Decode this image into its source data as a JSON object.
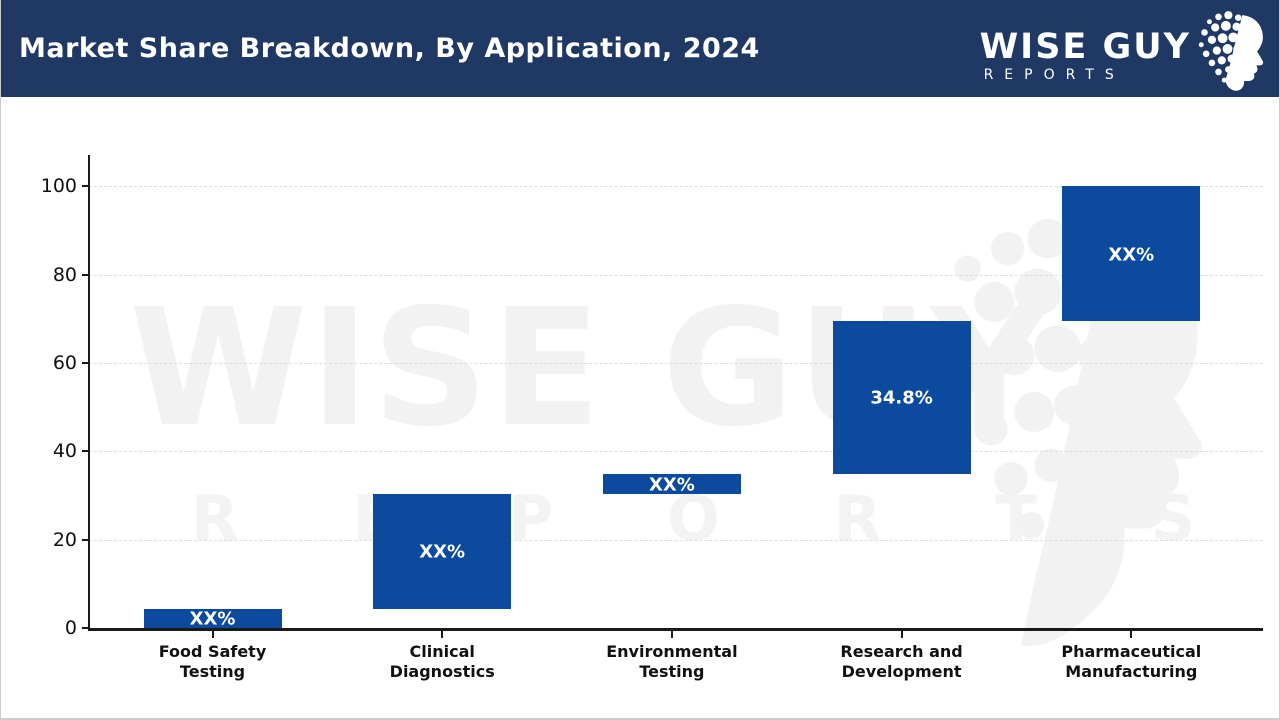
{
  "header": {
    "title": "Market Share Breakdown, By Application, 2024",
    "bg_color": "#1f3864"
  },
  "brand": {
    "name": "WISE GUY",
    "tagline": "REPORTS"
  },
  "watermark": {
    "name": "WISE GUY",
    "tagline": "R E P O R T S"
  },
  "chart_data": {
    "type": "bar",
    "subtype": "waterfall",
    "title": "Market Share Breakdown, By Application, 2024",
    "xlabel": "",
    "ylabel": "",
    "ylim": [
      0,
      105
    ],
    "yticks": [
      0,
      20,
      40,
      60,
      80,
      100
    ],
    "grid": "horizontal-dashed",
    "legend": "none",
    "bar_color": "#0b4a9c",
    "categories": [
      "Food Safety\nTesting",
      "Clinical\nDiagnostics",
      "Environmental\nTesting",
      "Research and\nDevelopment",
      "Pharmaceutical\nManufacturing"
    ],
    "segments": [
      {
        "category": "Food Safety Testing",
        "start": 0,
        "end": 4.4,
        "value": 4.4,
        "label": "XX%"
      },
      {
        "category": "Clinical Diagnostics",
        "start": 4.4,
        "end": 30.4,
        "value": 26.0,
        "label": "XX%"
      },
      {
        "category": "Environmental Testing",
        "start": 30.4,
        "end": 34.8,
        "value": 4.4,
        "label": "XX%"
      },
      {
        "category": "Research and Development",
        "start": 34.8,
        "end": 69.6,
        "value": 34.8,
        "label": "34.8%"
      },
      {
        "category": "Pharmaceutical Manufacturing",
        "start": 69.6,
        "end": 100,
        "value": 30.4,
        "label": "XX%"
      }
    ]
  }
}
